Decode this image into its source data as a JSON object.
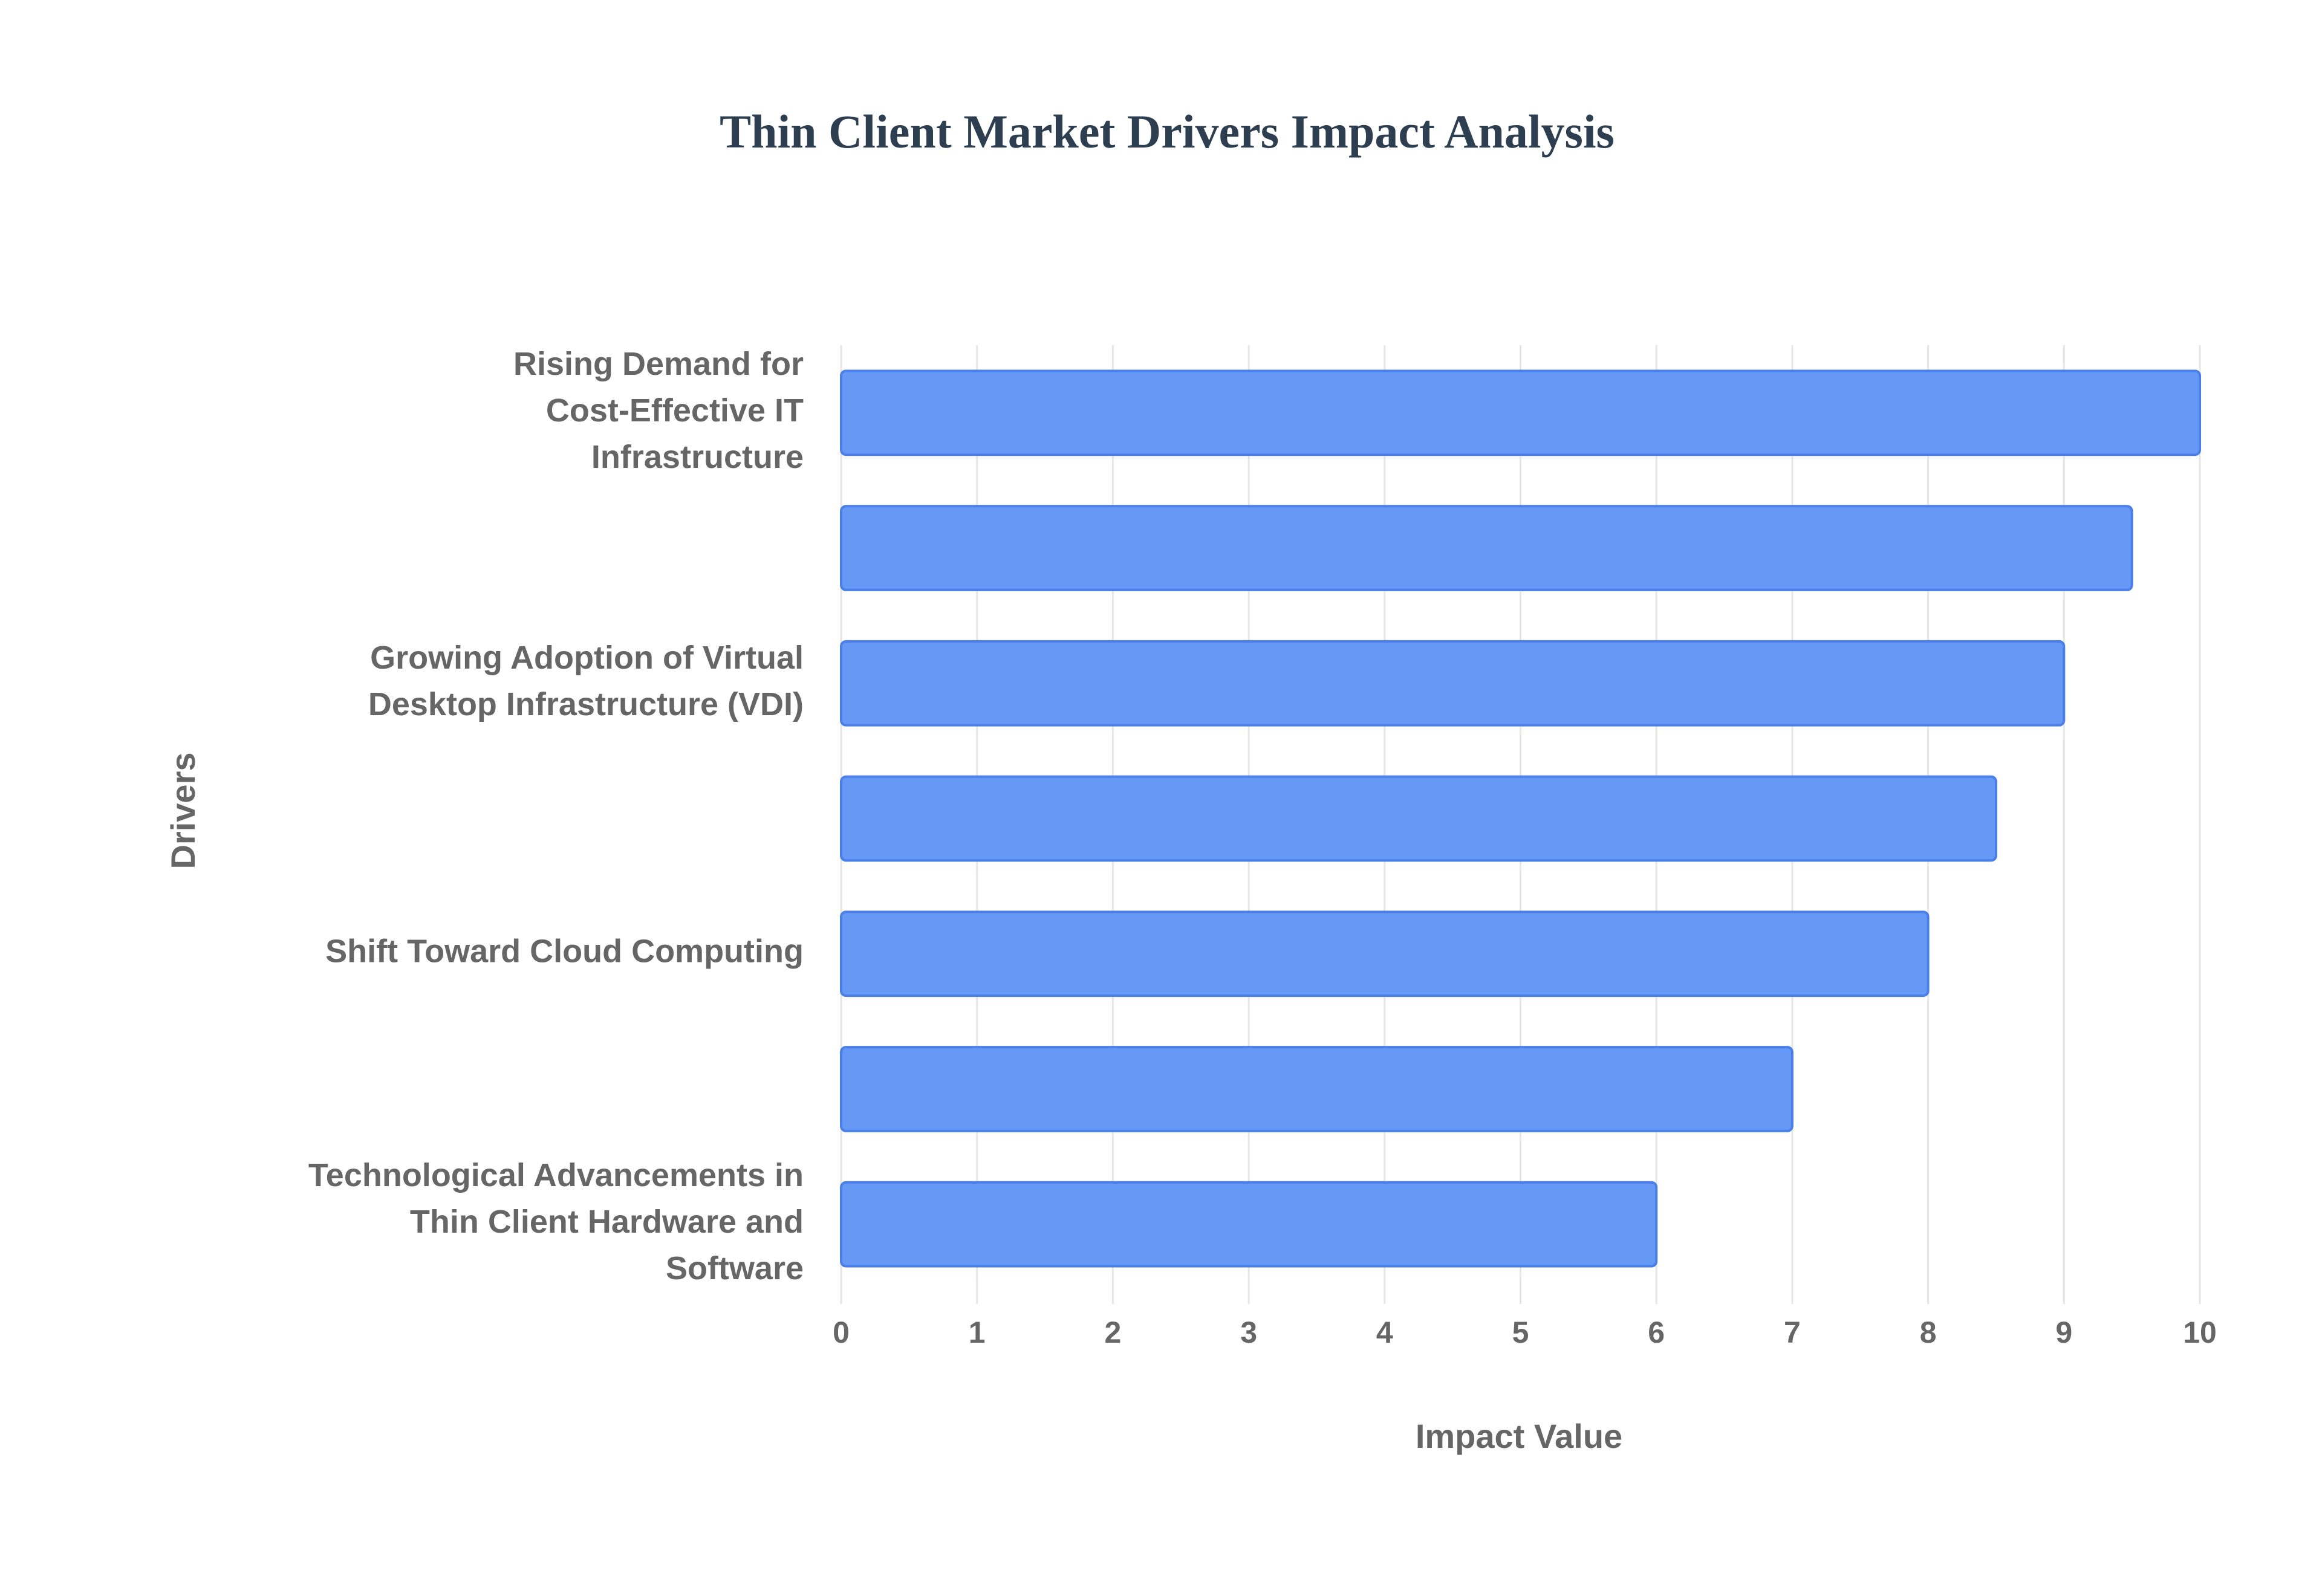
{
  "chart_data": {
    "type": "bar",
    "orientation": "horizontal",
    "title": "Thin Client Market Drivers Impact Analysis",
    "x_label": "Impact Value",
    "y_label": "Drivers",
    "categories": [
      [
        "Rising Demand for",
        "Cost-Effective IT",
        "Infrastructure"
      ],
      null,
      [
        "Growing Adoption of Virtual",
        "Desktop Infrastructure (VDI)"
      ],
      null,
      [
        "Shift Toward Cloud Computing"
      ],
      null,
      [
        "Technological Advancements in",
        "Thin Client Hardware and",
        "Software"
      ]
    ],
    "values": [
      10,
      9.5,
      9,
      8.5,
      8,
      7,
      6
    ],
    "color": "#6699f5",
    "border_color": "#4a7ee8",
    "xlim": [
      0,
      10
    ],
    "xticks": [
      0,
      1,
      2,
      3,
      4,
      5,
      6,
      7,
      8,
      9,
      10
    ],
    "grid": true
  }
}
